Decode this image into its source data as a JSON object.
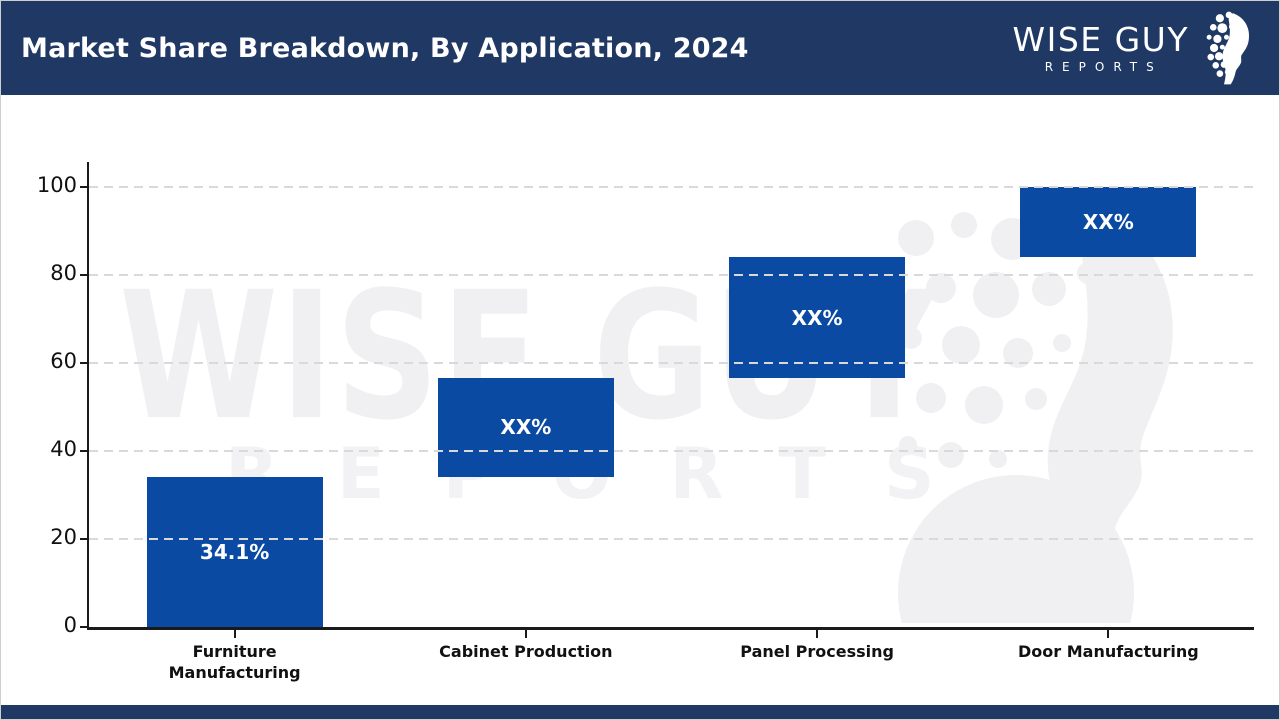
{
  "header": {
    "title": "Market Share Breakdown, By Application, 2024",
    "logo": {
      "line1": "WISE GUY",
      "line2": "REPORTS"
    }
  },
  "watermark": {
    "line1": "WISE GUY",
    "line2": "REPORTS"
  },
  "colors": {
    "header_navy": "#1F3864",
    "bar_blue": "#0B4AA2",
    "gridline_gray": "#D9D9D9",
    "axis_black": "#1A1A1A",
    "bar_label_white": "#FFFFFF",
    "watermark_gray": "#F0F0F2"
  },
  "chart_data": {
    "type": "bar",
    "subtype": "floating-waterfall",
    "title": "Market Share Breakdown, By Application, 2024",
    "categories": [
      "Furniture Manufacturing",
      "Cabinet Production",
      "Panel Processing",
      "Door Manufacturing"
    ],
    "segments": [
      {
        "category": "Furniture Manufacturing",
        "start": 0,
        "end": 34.1,
        "value": 34.1,
        "label": "34.1%"
      },
      {
        "category": "Cabinet Production",
        "start": 34.1,
        "end": 56.6,
        "value": 22.5,
        "label": "XX%"
      },
      {
        "category": "Panel Processing",
        "start": 56.6,
        "end": 84.0,
        "value": 27.4,
        "label": "XX%"
      },
      {
        "category": "Door Manufacturing",
        "start": 84.0,
        "end": 100.0,
        "value": 16.0,
        "label": "XX%"
      }
    ],
    "yticks": [
      0,
      20,
      40,
      60,
      80,
      100
    ],
    "ylim": [
      0,
      105
    ],
    "xlabel": "",
    "ylabel": "",
    "grid": "horizontal-dashed",
    "legend": "none",
    "bar_color": "#0B4AA2",
    "bar_label_color": "#FFFFFF"
  }
}
